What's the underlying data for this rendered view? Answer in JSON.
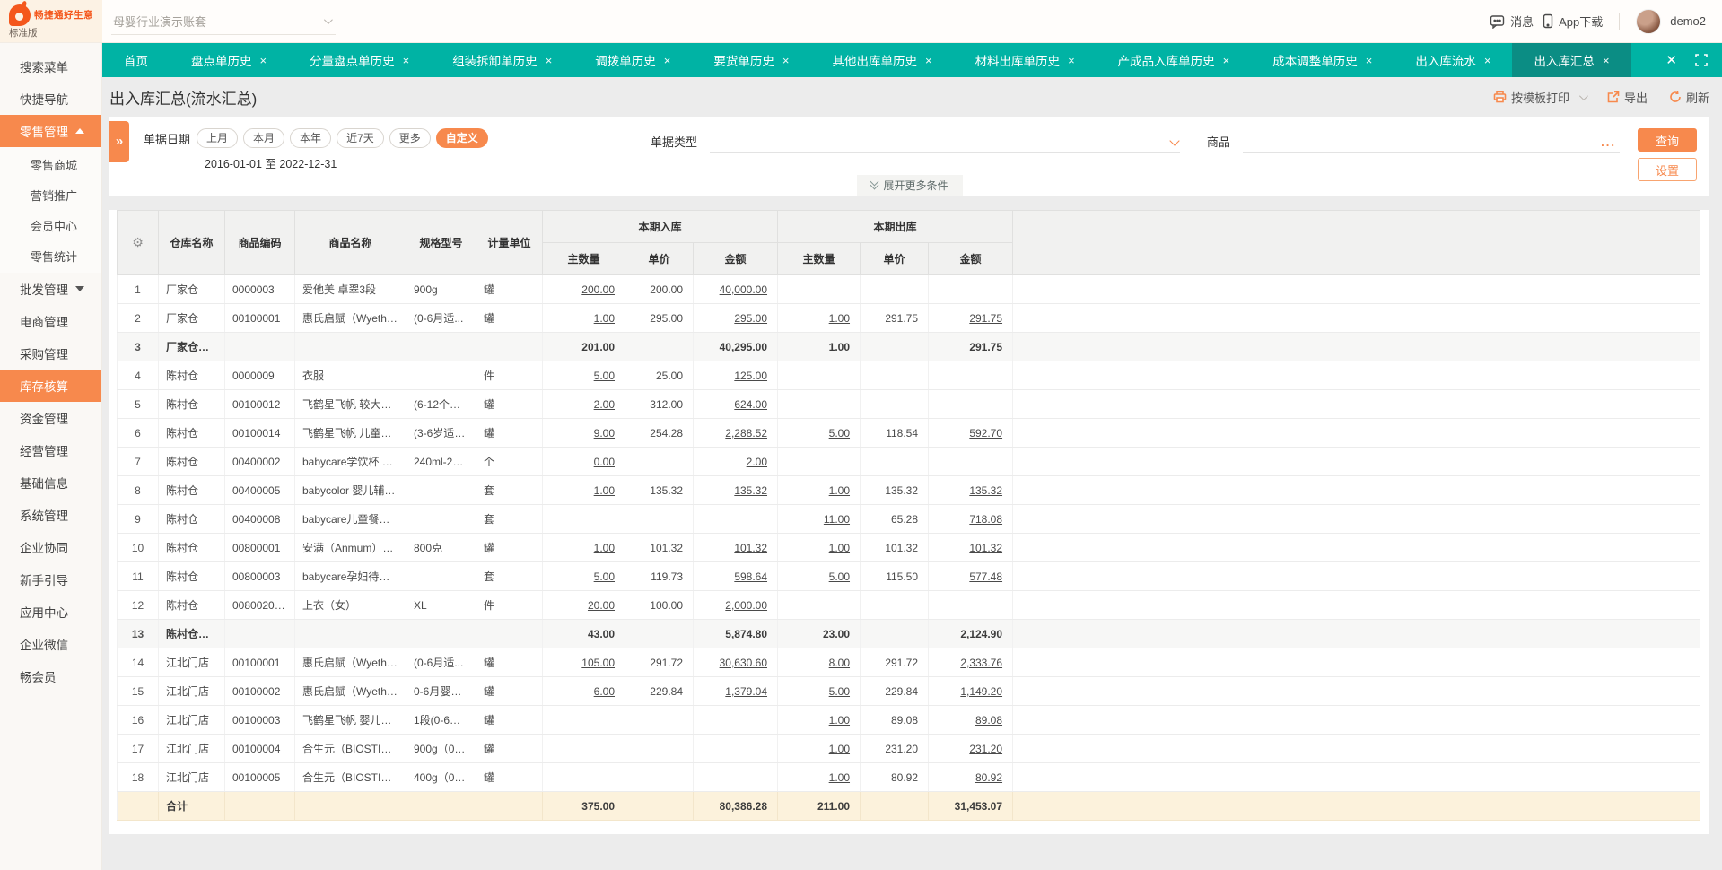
{
  "colors": {
    "teal": "#00b3a4",
    "teal_active_tab": "#0b8d84",
    "orange": "#f7894d",
    "total_row_bg": "#fcf2dc"
  },
  "topbar": {
    "logo_title": "畅捷通好生意",
    "logo_badge": "标准版",
    "account_set": "母婴行业演示账套",
    "messages": "消息",
    "app_download": "App下载",
    "user": "demo2"
  },
  "tabs": {
    "items": [
      {
        "label": "首页",
        "closable": false,
        "active": false
      },
      {
        "label": "盘点单历史",
        "closable": true,
        "active": false
      },
      {
        "label": "分量盘点单历史",
        "closable": true,
        "active": false
      },
      {
        "label": "组装拆卸单历史",
        "closable": true,
        "active": false
      },
      {
        "label": "调拨单历史",
        "closable": true,
        "active": false
      },
      {
        "label": "要货单历史",
        "closable": true,
        "active": false
      },
      {
        "label": "其他出库单历史",
        "closable": true,
        "active": false
      },
      {
        "label": "材料出库单历史",
        "closable": true,
        "active": false
      },
      {
        "label": "产成品入库单历史",
        "closable": true,
        "active": false
      },
      {
        "label": "成本调整单历史",
        "closable": true,
        "active": false
      },
      {
        "label": "出入库流水",
        "closable": true,
        "active": false
      },
      {
        "label": "出入库汇总",
        "closable": true,
        "active": true
      }
    ]
  },
  "sidebar": {
    "items": [
      {
        "label": "搜索菜单"
      },
      {
        "label": "快捷导航"
      },
      {
        "label": "零售管理",
        "active": true,
        "arrow": "up",
        "children": [
          "零售商城",
          "营销推广",
          "会员中心",
          "零售统计"
        ]
      },
      {
        "label": "批发管理",
        "arrow": "down"
      },
      {
        "label": "电商管理"
      },
      {
        "label": "采购管理"
      },
      {
        "label": "库存核算",
        "active": true
      },
      {
        "label": "资金管理"
      },
      {
        "label": "经营管理"
      },
      {
        "label": "基础信息"
      },
      {
        "label": "系统管理"
      },
      {
        "label": "企业协同"
      },
      {
        "label": "新手引导"
      },
      {
        "label": "应用中心"
      },
      {
        "label": "企业微信"
      },
      {
        "label": "畅会员"
      }
    ]
  },
  "page": {
    "title": "出入库汇总(流水汇总)",
    "print": "按模板打印",
    "export": "导出",
    "refresh": "刷新"
  },
  "filters": {
    "date_label": "单据日期",
    "date_pills": [
      {
        "label": "上月",
        "active": false
      },
      {
        "label": "本月",
        "active": false
      },
      {
        "label": "本年",
        "active": false
      },
      {
        "label": "近7天",
        "active": false
      },
      {
        "label": "更多",
        "active": false
      },
      {
        "label": "自定义",
        "active": true
      }
    ],
    "date_range": "2016-01-01 至 2022-12-31",
    "doc_type_label": "单据类型",
    "product_label": "商品",
    "search": "查询",
    "settings": "设置",
    "expand_more": "展开更多条件"
  },
  "table": {
    "group_in": "本期入库",
    "group_out": "本期出库",
    "col_warehouse": "仓库名称",
    "col_code": "商品编码",
    "col_name": "商品名称",
    "col_spec": "规格型号",
    "col_unit": "计量单位",
    "col_qty": "主数量",
    "col_price": "单价",
    "col_amount": "金额",
    "rows": [
      {
        "n": "1",
        "wh": "厂家仓",
        "code": "0000003",
        "name": "爱他美 卓翠3段",
        "spec": "900g",
        "unit": "罐",
        "iq": "200.00",
        "ip": "200.00",
        "ia": "40,000.00",
        "oq": "",
        "op": "",
        "oa": "",
        "type": "data"
      },
      {
        "n": "2",
        "wh": "厂家仓",
        "code": "00100001",
        "name": "惠氏启赋（Wyeth illu...",
        "spec": "(0-6月适...",
        "unit": "罐",
        "iq": "1.00",
        "ip": "295.00",
        "ia": "295.00",
        "oq": "1.00",
        "op": "291.75",
        "oa": "291.75",
        "type": "data"
      },
      {
        "n": "3",
        "wh": "厂家仓【小...",
        "code": "",
        "name": "",
        "spec": "",
        "unit": "",
        "iq": "201.00",
        "ip": "",
        "ia": "40,295.00",
        "oq": "1.00",
        "op": "",
        "oa": "291.75",
        "type": "subtotal"
      },
      {
        "n": "4",
        "wh": "陈村仓",
        "code": "0000009",
        "name": "衣服",
        "spec": "",
        "unit": "件",
        "iq": "5.00",
        "ip": "25.00",
        "ia": "125.00",
        "oq": "",
        "op": "",
        "oa": "",
        "type": "data"
      },
      {
        "n": "5",
        "wh": "陈村仓",
        "code": "00100012",
        "name": "飞鹤星飞帆 较大婴儿配...",
        "spec": "(6-12个月...",
        "unit": "罐",
        "iq": "2.00",
        "ip": "312.00",
        "ia": "624.00",
        "oq": "",
        "op": "",
        "oa": "",
        "type": "data"
      },
      {
        "n": "6",
        "wh": "陈村仓",
        "code": "00100014",
        "name": "飞鹤星飞帆 儿童奶粉 4...",
        "spec": "(3-6岁适用)...",
        "unit": "罐",
        "iq": "9.00",
        "ip": "254.28",
        "ia": "2,288.52",
        "oq": "5.00",
        "op": "118.54",
        "oa": "592.70",
        "type": "data"
      },
      {
        "n": "7",
        "wh": "陈村仓",
        "code": "00400002",
        "name": "babycare学饮杯 儿童...",
        "spec": "240ml-2716",
        "unit": "个",
        "iq": "0.00",
        "ip": "",
        "ia": "2.00",
        "oq": "",
        "op": "",
        "oa": "",
        "type": "data"
      },
      {
        "n": "8",
        "wh": "陈村仓",
        "code": "00400005",
        "name": "babycolor 婴儿辅食机 ...",
        "spec": "",
        "unit": "套",
        "iq": "1.00",
        "ip": "135.32",
        "ia": "135.32",
        "oq": "1.00",
        "op": "135.32",
        "oa": "135.32",
        "type": "data"
      },
      {
        "n": "9",
        "wh": "陈村仓",
        "code": "00400008",
        "name": "babycare儿童餐具 婴...",
        "spec": "",
        "unit": "套",
        "iq": "",
        "ip": "",
        "ia": "",
        "oq": "11.00",
        "op": "65.28",
        "oa": "718.08",
        "type": "data"
      },
      {
        "n": "10",
        "wh": "陈村仓",
        "code": "00800001",
        "name": "安满（Anmum）智孕...",
        "spec": "800克",
        "unit": "罐",
        "iq": "1.00",
        "ip": "101.32",
        "ia": "101.32",
        "oq": "1.00",
        "op": "101.32",
        "oa": "101.32",
        "type": "data"
      },
      {
        "n": "11",
        "wh": "陈村仓",
        "code": "00800003",
        "name": "babycare孕妇待产包 ...",
        "spec": "",
        "unit": "套",
        "iq": "5.00",
        "ip": "119.73",
        "ia": "598.64",
        "oq": "5.00",
        "op": "115.50",
        "oa": "577.48",
        "type": "data"
      },
      {
        "n": "12",
        "wh": "陈村仓",
        "code": "008002000...",
        "name": "上衣（女）",
        "spec": "XL",
        "unit": "件",
        "iq": "20.00",
        "ip": "100.00",
        "ia": "2,000.00",
        "oq": "",
        "op": "",
        "oa": "",
        "type": "data"
      },
      {
        "n": "13",
        "wh": "陈村仓【小...",
        "code": "",
        "name": "",
        "spec": "",
        "unit": "",
        "iq": "43.00",
        "ip": "",
        "ia": "5,874.80",
        "oq": "23.00",
        "op": "",
        "oa": "2,124.90",
        "type": "subtotal"
      },
      {
        "n": "14",
        "wh": "江北门店",
        "code": "00100001",
        "name": "惠氏启赋（Wyeth illu...",
        "spec": "(0-6月适...",
        "unit": "罐",
        "iq": "105.00",
        "ip": "291.72",
        "ia": "30,630.60",
        "oq": "8.00",
        "op": "291.72",
        "oa": "2,333.76",
        "type": "data"
      },
      {
        "n": "15",
        "wh": "江北门店",
        "code": "00100002",
        "name": "惠氏启赋（Wyeth illu...",
        "spec": "0-6月婴儿...",
        "unit": "罐",
        "iq": "6.00",
        "ip": "229.84",
        "ia": "1,379.04",
        "oq": "5.00",
        "op": "229.84",
        "oa": "1,149.20",
        "type": "data"
      },
      {
        "n": "16",
        "wh": "江北门店",
        "code": "00100003",
        "name": "飞鹤星飞帆 婴儿配方奶...",
        "spec": "1段(0-6个...",
        "unit": "罐",
        "iq": "",
        "ip": "",
        "ia": "",
        "oq": "1.00",
        "op": "89.08",
        "oa": "89.08",
        "type": "data"
      },
      {
        "n": "17",
        "wh": "江北门店",
        "code": "00100004",
        "name": "合生元（BIOSTIME）...",
        "spec": "900g（0-6...",
        "unit": "罐",
        "iq": "",
        "ip": "",
        "ia": "",
        "oq": "1.00",
        "op": "231.20",
        "oa": "231.20",
        "type": "data"
      },
      {
        "n": "18",
        "wh": "江北门店",
        "code": "00100005",
        "name": "合生元（BIOSTIME）...",
        "spec": "400g（0-6...",
        "unit": "罐",
        "iq": "",
        "ip": "",
        "ia": "",
        "oq": "1.00",
        "op": "80.92",
        "oa": "80.92",
        "type": "data"
      },
      {
        "n": "",
        "wh": "合计",
        "code": "",
        "name": "",
        "spec": "",
        "unit": "",
        "iq": "375.00",
        "ip": "",
        "ia": "80,386.28",
        "oq": "211.00",
        "op": "",
        "oa": "31,453.07",
        "type": "total"
      }
    ]
  }
}
